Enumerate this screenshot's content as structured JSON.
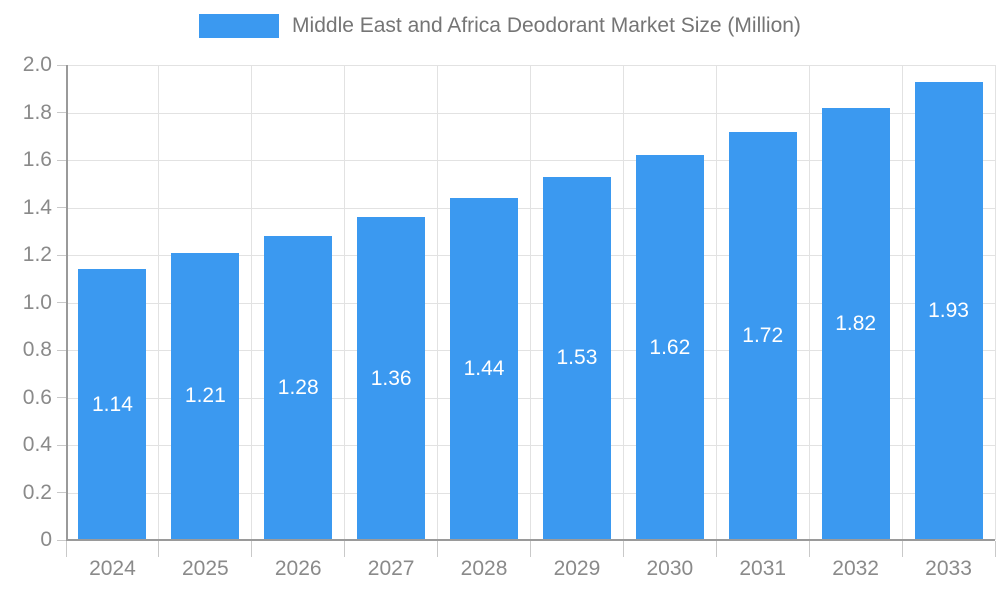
{
  "chart_data": {
    "type": "bar",
    "title": "Middle East and Africa Deodorant Market Size (Million)",
    "legend": {
      "position": "top",
      "entries": [
        "Middle East and Africa Deodorant Market Size (Million)"
      ]
    },
    "categories": [
      "2024",
      "2025",
      "2026",
      "2027",
      "2028",
      "2029",
      "2030",
      "2031",
      "2032",
      "2033"
    ],
    "values": [
      1.14,
      1.21,
      1.28,
      1.36,
      1.44,
      1.53,
      1.62,
      1.72,
      1.82,
      1.93
    ],
    "value_labels": [
      "1.14",
      "1.21",
      "1.28",
      "1.36",
      "1.44",
      "1.53",
      "1.62",
      "1.72",
      "1.82",
      "1.93"
    ],
    "xlabel": "",
    "ylabel": "",
    "ylim": [
      0,
      2.0
    ],
    "ytick_step": 0.2,
    "ytick_labels": [
      "0",
      "0.2",
      "0.4",
      "0.6",
      "0.8",
      "1.0",
      "1.2",
      "1.4",
      "1.6",
      "1.8",
      "2.0"
    ],
    "grid": true
  },
  "colors": {
    "bar": "#3B99F0",
    "value_label": "#ffffff",
    "gridline": "#e2e2e2",
    "axis_line": "#9a9a9a",
    "tick": "#c9c9c9",
    "axis_text": "#8a8a8a",
    "title_text": "#757575"
  }
}
